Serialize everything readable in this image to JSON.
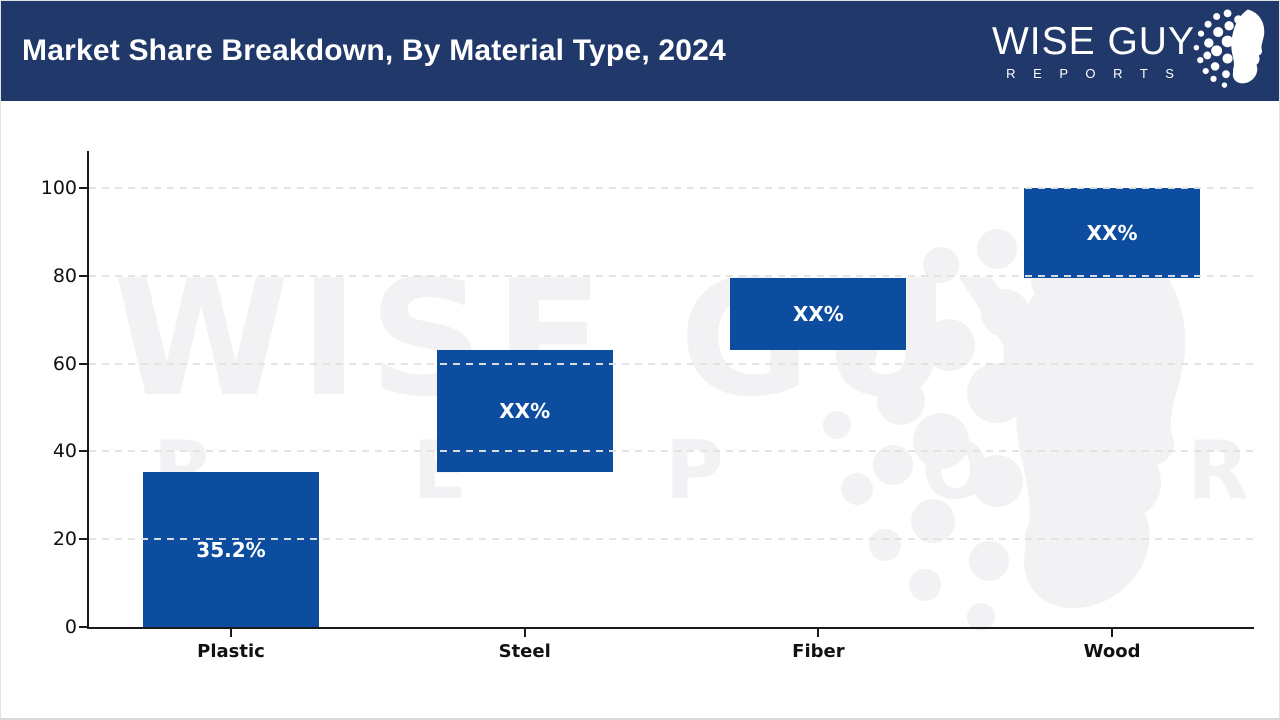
{
  "header": {
    "title": "Market Share Breakdown, By Material Type, 2024",
    "logo": {
      "name": "WISE GUY",
      "sub": "R E P O R T S"
    }
  },
  "watermark": {
    "line1": "WISE GUY",
    "line2": "R E P O R T S"
  },
  "chart_data": {
    "type": "bar",
    "subtype": "waterfall",
    "title": "Market Share Breakdown, By Material Type, 2024",
    "categories": [
      "Plastic",
      "Steel",
      "Fiber",
      "Wood"
    ],
    "bars": [
      {
        "category": "Plastic",
        "start": 0,
        "end": 35.2,
        "value": 35.2,
        "label": "35.2%"
      },
      {
        "category": "Steel",
        "start": 35.2,
        "end": 63.2,
        "value": 28.0,
        "label": "XX%"
      },
      {
        "category": "Fiber",
        "start": 63.2,
        "end": 79.6,
        "value": 16.4,
        "label": "XX%"
      },
      {
        "category": "Wood",
        "start": 79.6,
        "end": 100,
        "value": 20.4,
        "label": "XX%"
      }
    ],
    "yticks": [
      0,
      20,
      40,
      60,
      80,
      100
    ],
    "ylim": [
      0,
      108
    ],
    "xlabel": "",
    "ylabel": "",
    "grid": "horizontal dashed gridlines drawn above bars",
    "legend": null
  },
  "colors": {
    "header_bg": "#21386b",
    "bar": "#0d4da0",
    "axis": "#1a1a1a",
    "grid": "#e2e2e2",
    "watermark": "#f2f2f4",
    "label_on_bar": "#ffffff"
  }
}
